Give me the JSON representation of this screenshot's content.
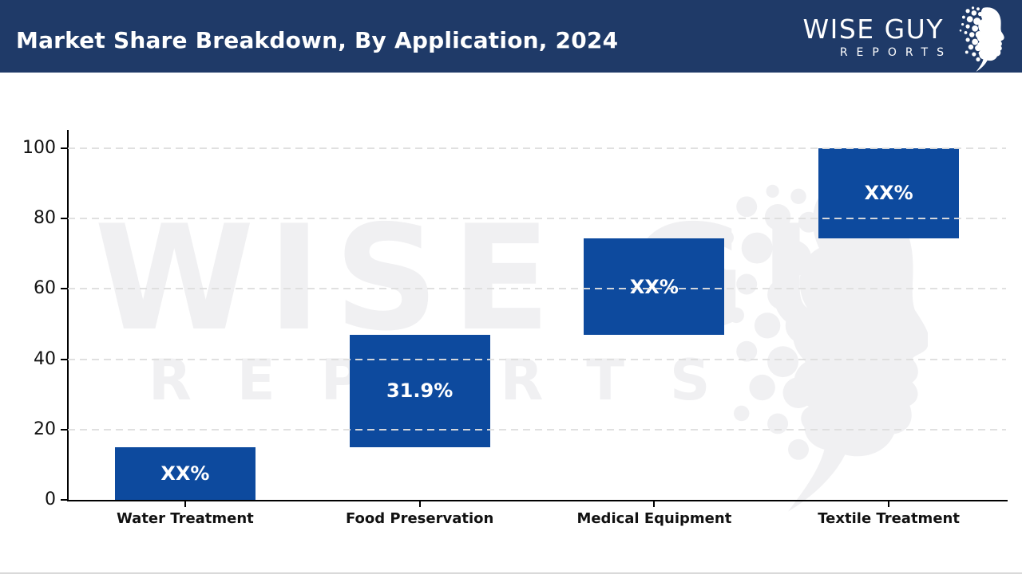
{
  "header": {
    "title": "Market Share Breakdown, By Application, 2024",
    "logo": {
      "name": "WISE GUY",
      "subtitle": "REPORTS"
    }
  },
  "watermark": {
    "line1": "WISE GU",
    "line2": "REPORTS"
  },
  "colors": {
    "header_navy": "#1f3a68",
    "bar_blue": "#0d4a9e",
    "gridline_gray": "#dedede",
    "watermark_gray": "#f0f0f2"
  },
  "chart_data": {
    "type": "bar",
    "variant": "floating-waterfall",
    "title": "Market Share Breakdown, By Application, 2024",
    "categories": [
      "Water Treatment",
      "Food Preservation",
      "Medical Equipment",
      "Textile Treatment"
    ],
    "bars": [
      {
        "category": "Water Treatment",
        "start": 0,
        "end": 15.0,
        "label": "XX%"
      },
      {
        "category": "Food Preservation",
        "start": 15.0,
        "end": 46.9,
        "label": "31.9%"
      },
      {
        "category": "Medical Equipment",
        "start": 46.9,
        "end": 74.4,
        "label": "XX%"
      },
      {
        "category": "Textile Treatment",
        "start": 74.4,
        "end": 100.0,
        "label": "XX%"
      }
    ],
    "yticks": [
      0,
      20,
      40,
      60,
      80,
      100
    ],
    "ylim": [
      0,
      105
    ],
    "xlabel": "",
    "ylabel": "",
    "bar_color": "#0d4a9e",
    "grid": "horizontal-dashed",
    "legend": "none"
  }
}
